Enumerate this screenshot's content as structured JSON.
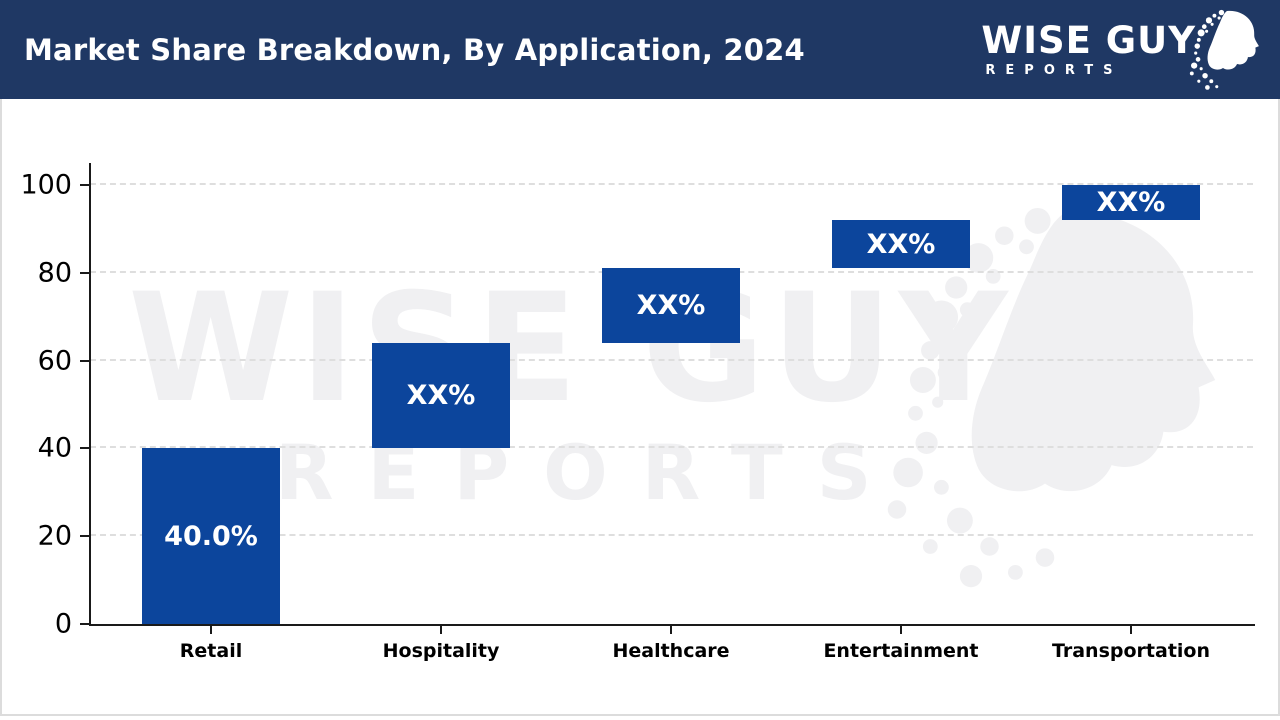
{
  "header": {
    "title": "Market Share Breakdown, By Application, 2024",
    "logo": {
      "line1": "WISE GUY",
      "line2": "REPORTS"
    }
  },
  "watermark": {
    "line1": "WISE GUY",
    "line2": "REPORTS"
  },
  "chart_data": {
    "type": "bar",
    "subtype": "waterfall",
    "title": "Market Share Breakdown, By Application, 2024",
    "categories": [
      "Retail",
      "Hospitality",
      "Healthcare",
      "Entertainment",
      "Transportation"
    ],
    "bars": [
      {
        "category": "Retail",
        "start": 0,
        "end": 40,
        "value": 40,
        "label": "40.0%"
      },
      {
        "category": "Hospitality",
        "start": 40,
        "end": 64,
        "value": 24,
        "label": "XX%"
      },
      {
        "category": "Healthcare",
        "start": 64,
        "end": 81,
        "value": 17,
        "label": "XX%"
      },
      {
        "category": "Entertainment",
        "start": 81,
        "end": 92,
        "value": 11,
        "label": "XX%"
      },
      {
        "category": "Transportation",
        "start": 92,
        "end": 100,
        "value": 8,
        "label": "XX%"
      }
    ],
    "y_ticks": [
      0,
      20,
      40,
      60,
      80,
      100
    ],
    "ylim": [
      0,
      105
    ],
    "xlabel": "",
    "ylabel": "",
    "grid": "horizontal-dashed",
    "legend": "none",
    "bar_color": "#0C459C"
  },
  "colors": {
    "header_bg": "#1F3864",
    "bar": "#0C459C",
    "grid": "#DEDEDE",
    "axis": "#1A1A1A",
    "watermark": "#F0F0F2",
    "border": "#DCDCDC"
  }
}
